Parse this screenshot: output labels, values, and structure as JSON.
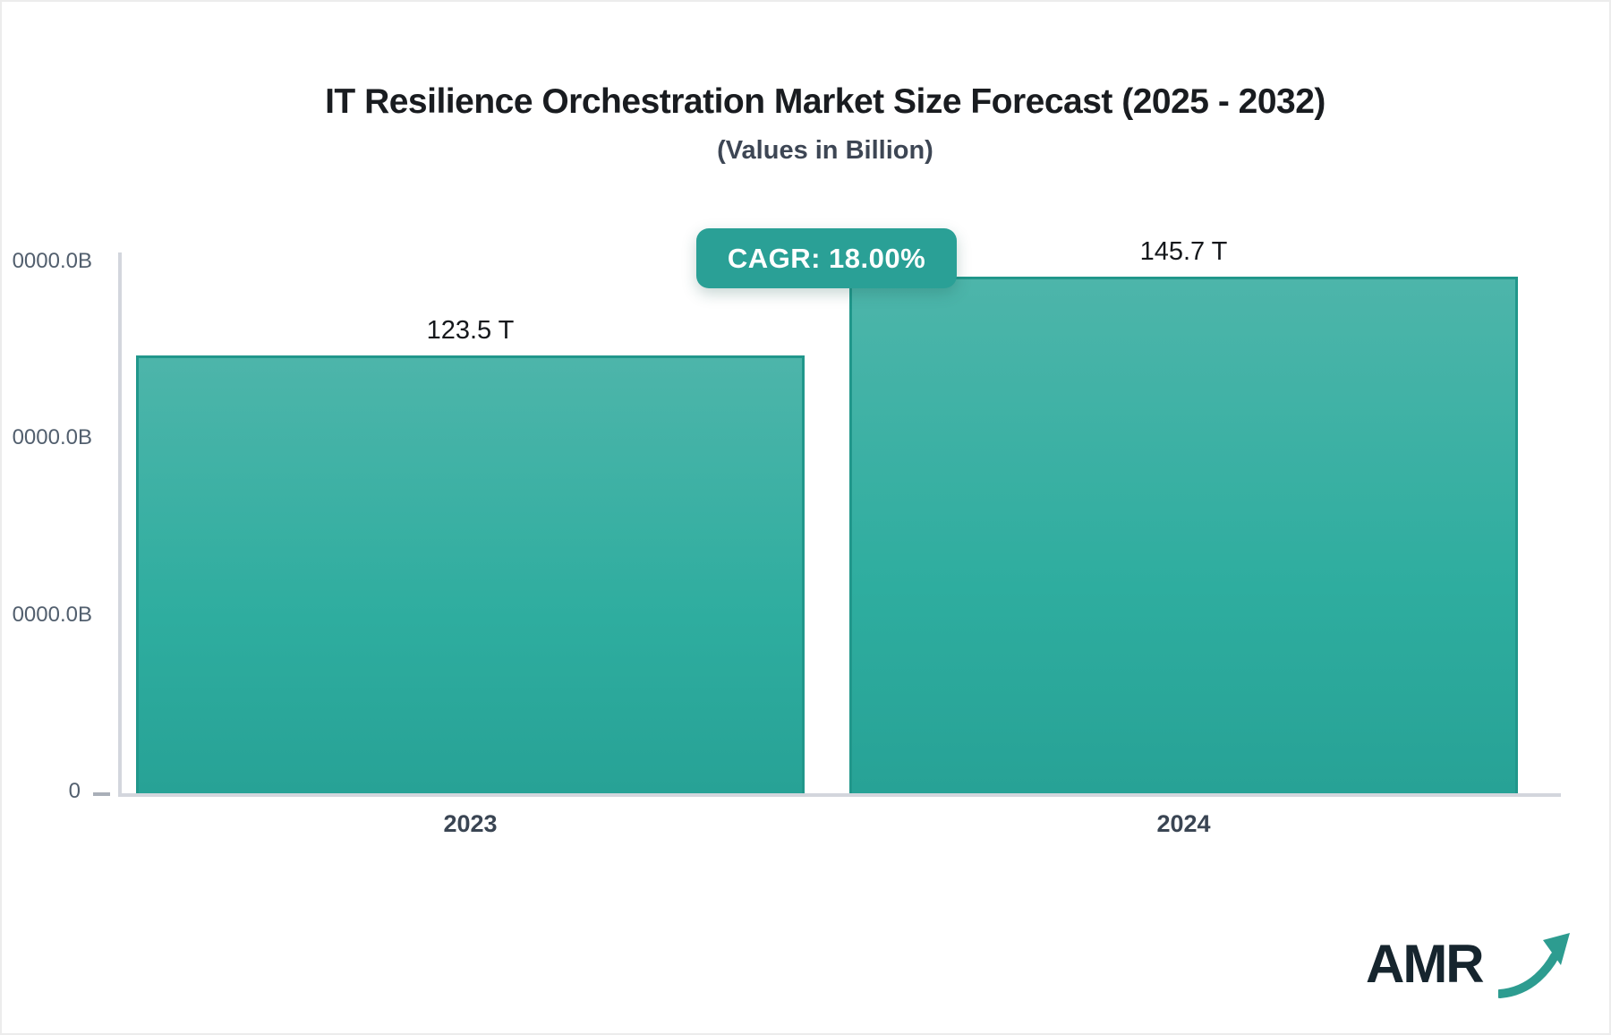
{
  "header": {
    "title": "IT Resilience Orchestration Market Size Forecast (2025 - 2032)",
    "subtitle": "(Values in Billion)"
  },
  "badge": {
    "label": "CAGR: 18.00%",
    "color": "#2aa096"
  },
  "chart_data": {
    "type": "bar",
    "title": "IT Resilience Orchestration Market Size Forecast (2025 - 2032)",
    "subtitle": "(Values in Billion)",
    "categories": [
      "2023",
      "2024"
    ],
    "values": [
      123500,
      145700
    ],
    "value_labels": [
      "123.5 T",
      "145.7 T"
    ],
    "unit_note": "Values in Billion; bar labels shown in T (thousands of billions)",
    "cagr_annotation": "CAGR: 18.00%",
    "ylim": [
      0,
      150000
    ],
    "ytick_labels_displayed": [
      "0000.0B",
      "0000.0B",
      "0000.0B",
      "0"
    ],
    "ytick_note": "y-axis labels are clipped at the left image edge; only trailing characters visible",
    "grid": false,
    "legend": "none",
    "bar_color_top": "#4db5aa",
    "bar_color_bottom": "#27a296",
    "bar_border_color": "#21978b",
    "axis_line_color": "#d3d6dd"
  },
  "logo": {
    "text": "AMR",
    "text_color": "#16252e",
    "arrow_color": "#2d9c90"
  }
}
